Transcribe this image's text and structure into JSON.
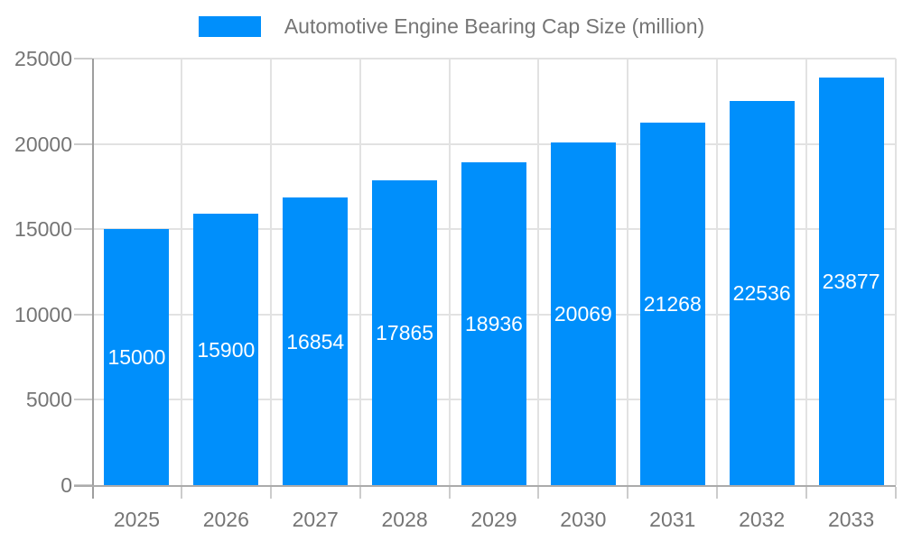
{
  "chart_data": {
    "type": "bar",
    "title": "Automotive Engine Bearing Cap Size (million)",
    "legend": {
      "position": "top",
      "entries": [
        {
          "label": "Automotive Engine Bearing Cap Size (million)",
          "swatch_color": "#008FFB"
        }
      ]
    },
    "categories": [
      "2025",
      "2026",
      "2027",
      "2028",
      "2029",
      "2030",
      "2031",
      "2032",
      "2033"
    ],
    "series": [
      {
        "name": "Automotive Engine Bearing Cap Size (million)",
        "values": [
          15000,
          15900,
          16854,
          17865,
          18936,
          20069,
          21268,
          22536,
          23877
        ]
      }
    ],
    "value_labels": {
      "visible": true,
      "position": "inside-center",
      "color": "#FFFFFF"
    },
    "xlabel": "",
    "ylabel": "",
    "ylim": [
      0,
      25000
    ],
    "yticks": [
      0,
      5000,
      10000,
      15000,
      20000,
      25000
    ],
    "grid": true,
    "colors": {
      "bar": "#008FFB",
      "axis_text": "#757575",
      "title_text": "#757575",
      "gridline": "#E2E2E2",
      "axis_line": "#9E9E9E",
      "tick": "#CCCCCC"
    }
  }
}
